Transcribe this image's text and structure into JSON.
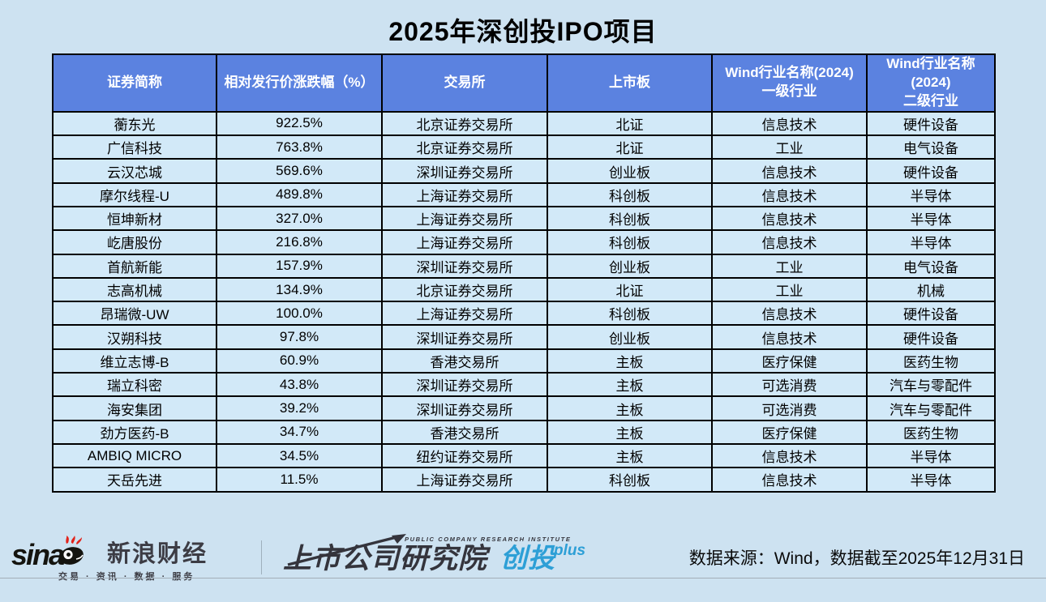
{
  "title": "2025年深创投IPO项目",
  "chart_data": {
    "type": "table",
    "title": "2025年深创投IPO项目",
    "columns": [
      "证券简称",
      "相对发行价涨跌幅（%）",
      "交易所",
      "上市板",
      "Wind行业名称(2024)\n一级行业",
      "Wind行业名称(2024)\n二级行业"
    ],
    "rows": [
      {
        "name": "蘅东光",
        "change": "922.5%",
        "exchange": "北京证券交易所",
        "board": "北证",
        "industry_l1": "信息技术",
        "industry_l2": "硬件设备"
      },
      {
        "name": "广信科技",
        "change": "763.8%",
        "exchange": "北京证券交易所",
        "board": "北证",
        "industry_l1": "工业",
        "industry_l2": "电气设备"
      },
      {
        "name": "云汉芯城",
        "change": "569.6%",
        "exchange": "深圳证券交易所",
        "board": "创业板",
        "industry_l1": "信息技术",
        "industry_l2": "硬件设备"
      },
      {
        "name": "摩尔线程-U",
        "change": "489.8%",
        "exchange": "上海证券交易所",
        "board": "科创板",
        "industry_l1": "信息技术",
        "industry_l2": "半导体"
      },
      {
        "name": "恒坤新材",
        "change": "327.0%",
        "exchange": "上海证券交易所",
        "board": "科创板",
        "industry_l1": "信息技术",
        "industry_l2": "半导体"
      },
      {
        "name": "屹唐股份",
        "change": "216.8%",
        "exchange": "上海证券交易所",
        "board": "科创板",
        "industry_l1": "信息技术",
        "industry_l2": "半导体"
      },
      {
        "name": "首航新能",
        "change": "157.9%",
        "exchange": "深圳证券交易所",
        "board": "创业板",
        "industry_l1": "工业",
        "industry_l2": "电气设备"
      },
      {
        "name": "志高机械",
        "change": "134.9%",
        "exchange": "北京证券交易所",
        "board": "北证",
        "industry_l1": "工业",
        "industry_l2": "机械"
      },
      {
        "name": "昂瑞微-UW",
        "change": "100.0%",
        "exchange": "上海证券交易所",
        "board": "科创板",
        "industry_l1": "信息技术",
        "industry_l2": "硬件设备"
      },
      {
        "name": "汉朔科技",
        "change": "97.8%",
        "exchange": "深圳证券交易所",
        "board": "创业板",
        "industry_l1": "信息技术",
        "industry_l2": "硬件设备"
      },
      {
        "name": "维立志博-B",
        "change": "60.9%",
        "exchange": "香港交易所",
        "board": "主板",
        "industry_l1": "医疗保健",
        "industry_l2": "医药生物"
      },
      {
        "name": "瑞立科密",
        "change": "43.8%",
        "exchange": "深圳证券交易所",
        "board": "主板",
        "industry_l1": "可选消费",
        "industry_l2": "汽车与零配件"
      },
      {
        "name": "海安集团",
        "change": "39.2%",
        "exchange": "深圳证券交易所",
        "board": "主板",
        "industry_l1": "可选消费",
        "industry_l2": "汽车与零配件"
      },
      {
        "name": "劲方医药-B",
        "change": "34.7%",
        "exchange": "香港交易所",
        "board": "主板",
        "industry_l1": "医疗保健",
        "industry_l2": "医药生物"
      },
      {
        "name": "AMBIQ MICRO",
        "change": "34.5%",
        "exchange": "纽约证券交易所",
        "board": "主板",
        "industry_l1": "信息技术",
        "industry_l2": "半导体"
      },
      {
        "name": "天岳先进",
        "change": "11.5%",
        "exchange": "上海证券交易所",
        "board": "科创板",
        "industry_l1": "信息技术",
        "industry_l2": "半导体"
      }
    ]
  },
  "footer": {
    "sina_word": "sina",
    "sina_brand": "新浪财经",
    "sina_tagline": "交易 · 资讯 · 数据 · 服务",
    "institute_en": "PUBLIC COMPANY RESEARCH INSTITUTE",
    "institute_name": "上市公司研究院",
    "plus_brand": "创投",
    "plus_suffix": "plus",
    "source_note": "数据来源：Wind，数据截至2025年12月31日"
  },
  "colors": {
    "page_bg": "#cde2f1",
    "header_bg": "#5b82e0",
    "cell_bg": "#d2e9f8",
    "border": "#000000",
    "plus_blue": "#2d9fd6",
    "sina_red": "#e2231a"
  }
}
